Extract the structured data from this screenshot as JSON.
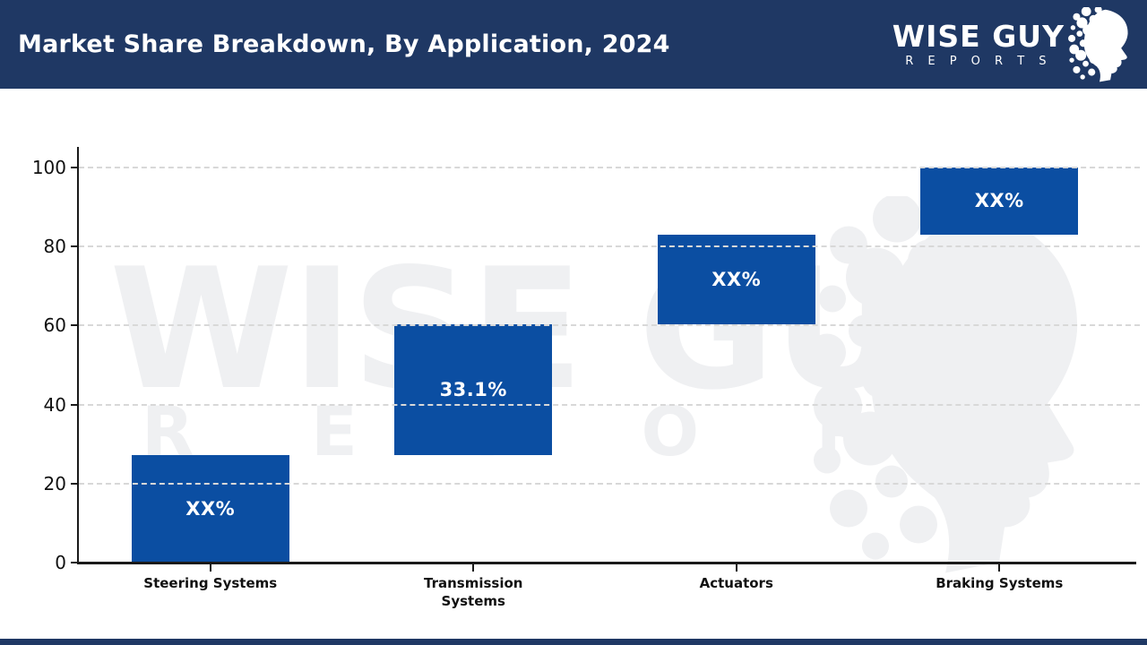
{
  "colors": {
    "header_bg": "#1f3864",
    "bar": "#0b4ea2",
    "grid": "#d8d8d8",
    "axis": "#1a1a1a",
    "bar_label_text": "#ffffff",
    "watermark": "#eff0f2"
  },
  "header": {
    "title": "Market Share Breakdown, By Application, 2024",
    "logo": {
      "wordmark": "WISE GUY",
      "sub": "R E P O R T S"
    }
  },
  "watermark": {
    "wordmark": "WISE GUY",
    "sub": "R E P O R T S"
  },
  "chart_data": {
    "type": "bar",
    "subtype": "waterfall",
    "title": "Market Share Breakdown, By Application, 2024",
    "categories": [
      "Steering Systems",
      "Transmission Systems",
      "Actuators",
      "Braking Systems"
    ],
    "series": [
      {
        "category": "Steering Systems",
        "label_lines": [
          "Steering Systems"
        ],
        "start": 0,
        "end": 27.3,
        "value_label": "XX%"
      },
      {
        "category": "Transmission Systems",
        "label_lines": [
          "Transmission",
          "Systems"
        ],
        "start": 27.3,
        "end": 60.4,
        "value": 33.1,
        "value_label": "33.1%"
      },
      {
        "category": "Actuators",
        "label_lines": [
          "Actuators"
        ],
        "start": 60.4,
        "end": 83,
        "value_label": "XX%"
      },
      {
        "category": "Braking Systems",
        "label_lines": [
          "Braking Systems"
        ],
        "start": 83,
        "end": 100,
        "value_label": "XX%"
      }
    ],
    "yticks": [
      0,
      20,
      40,
      60,
      80,
      100
    ],
    "ylim": [
      0,
      105
    ],
    "xlabel": "",
    "ylabel": "",
    "legend": false,
    "grid": "horizontal-dashed",
    "bar_color": "#0b4ea2"
  }
}
